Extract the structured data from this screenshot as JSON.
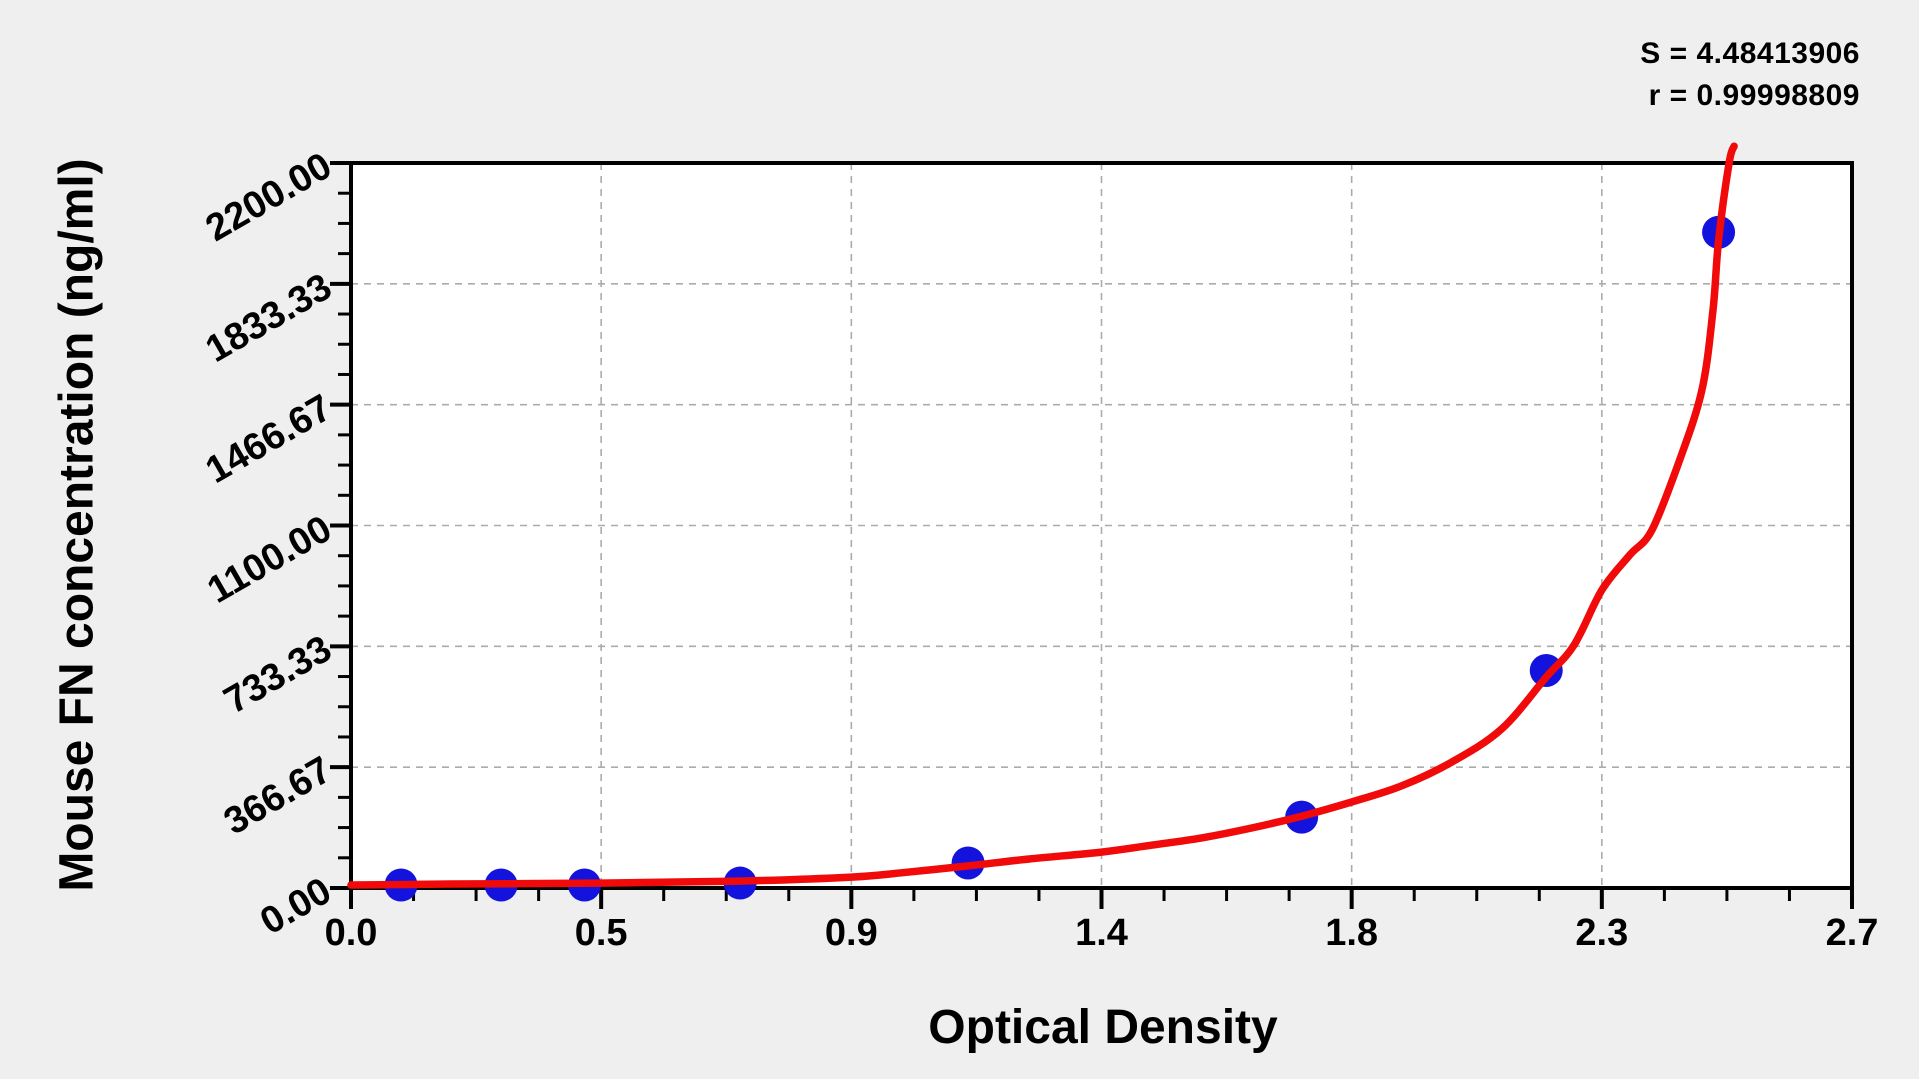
{
  "stats": {
    "s_label": "S = 4.48413906",
    "r_label": "r = 0.99998809"
  },
  "chart_data": {
    "type": "scatter",
    "title": "",
    "xlabel": "Optical Density",
    "ylabel": "Mouse FN concentration (ng/ml)",
    "grid": "dashed",
    "legend": "none",
    "x_axis": {
      "min": 0,
      "max": 2.7,
      "major_divisions": 6,
      "minor_divisions_per_major": 4,
      "tick_labels": [
        "0.0",
        "0.5",
        "0.9",
        "1.4",
        "1.8",
        "2.3",
        "2.7"
      ]
    },
    "y_axis": {
      "min": 0,
      "max": 2200,
      "major_divisions": 6,
      "minor_divisions_per_major": 4,
      "tick_labels": [
        "0.00",
        "366.67",
        "733.33",
        "1100.00",
        "1466.67",
        "1833.33",
        "2200.00"
      ]
    },
    "series": [
      {
        "name": "standard-points",
        "type": "scatter",
        "x": [
          0.09,
          0.27,
          0.42,
          0.7,
          1.11,
          1.71,
          2.15,
          2.46
        ],
        "y": [
          9,
          9,
          9,
          15,
          76,
          215,
          660,
          1990
        ]
      },
      {
        "name": "fitted-curve",
        "type": "line",
        "x": [
          0.0,
          0.18,
          0.45,
          0.7,
          0.9,
          0.99,
          1.11,
          1.22,
          1.35,
          1.44,
          1.53,
          1.62,
          1.71,
          1.8,
          1.89,
          1.98,
          2.07,
          2.15,
          2.2,
          2.25,
          2.3,
          2.34,
          2.39,
          2.43,
          2.45,
          2.46,
          2.479,
          2.488
        ],
        "y": [
          9,
          12,
          15,
          21,
          33,
          46,
          67,
          88,
          109,
          130,
          152,
          182,
          218,
          261,
          310,
          382,
          483,
          640,
          737,
          904,
          1010,
          1086,
          1299,
          1511,
          1754,
          1966,
          2200,
          2251
        ]
      }
    ],
    "annotations": [
      "S = 4.48413906",
      "r = 0.99998809"
    ],
    "colors": {
      "points": "#1313dd",
      "curve": "#f00a0a",
      "grid": "#ababab",
      "axis": "#000000",
      "plot_bg": "#ffffff",
      "figure_bg": "#efefef",
      "text": "#000000"
    }
  }
}
